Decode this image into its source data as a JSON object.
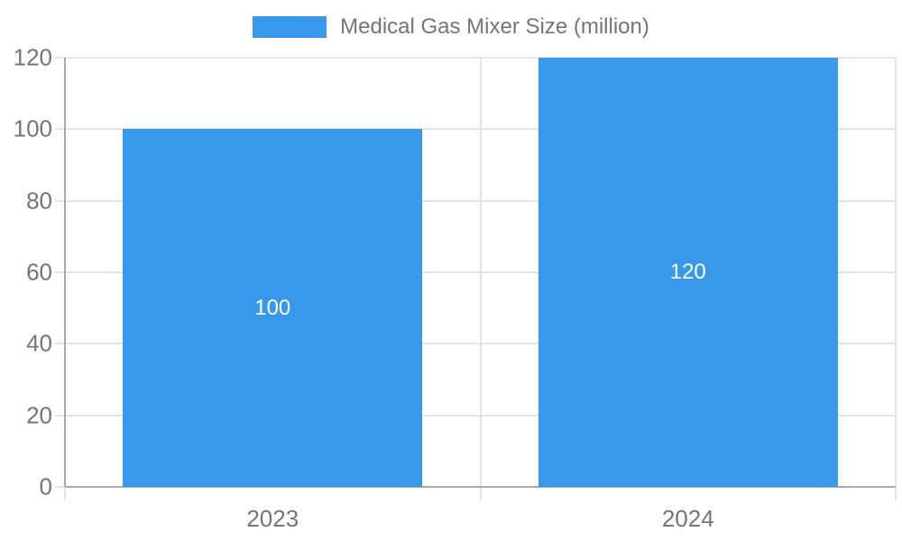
{
  "chart_data": {
    "type": "bar",
    "title": "Medical Gas Mixer Size (million)",
    "categories": [
      "2023",
      "2024"
    ],
    "values": [
      100,
      120
    ],
    "series": [
      {
        "name": "Medical Gas Mixer Size (million)",
        "values": [
          100,
          120
        ]
      }
    ],
    "data_labels": [
      "100",
      "120"
    ],
    "xlabel": "",
    "ylabel": "",
    "ylim": [
      0,
      120
    ],
    "yticks": [
      0,
      20,
      40,
      60,
      80,
      100,
      120
    ],
    "grid": "horizontal gridlines on, category boundary verticals on",
    "legend_position": "top-center",
    "colors": {
      "bar": "#3899EC",
      "grid": "#e3e3e3",
      "axis": "#a9a9a9",
      "tick_text": "#757575",
      "bar_label_text": "#ffffff",
      "background": "#ffffff"
    }
  },
  "legend": {
    "label": "Medical Gas Mixer Size (million)"
  }
}
